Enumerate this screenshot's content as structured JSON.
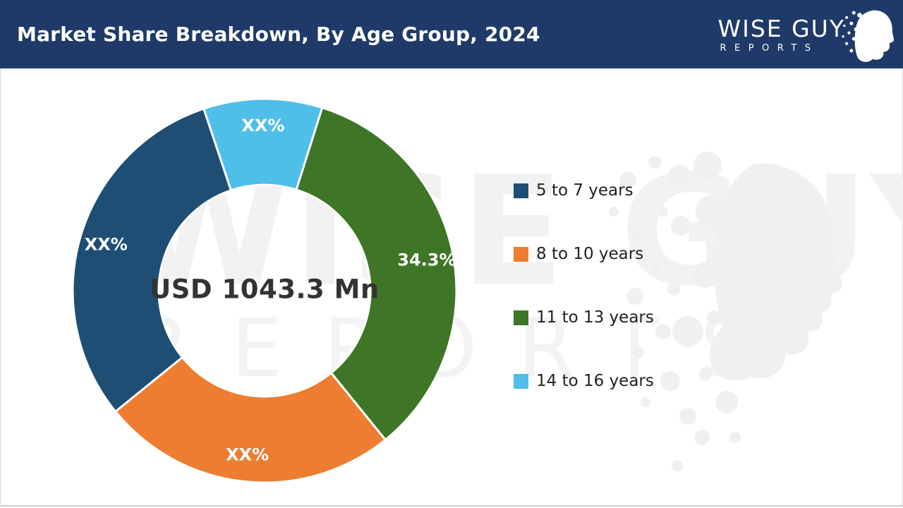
{
  "header": {
    "title": "Market Share Breakdown, By Age Group, 2024"
  },
  "logo": {
    "line1": "WISE GUY",
    "line2": "REPORTS"
  },
  "watermark": {
    "line1": "WISE GUY",
    "line2": "REPORTS"
  },
  "chart_data": {
    "type": "donut",
    "center_label": "USD 1043.3 Mn",
    "legend_position": "right",
    "start_angle": -18.5,
    "segments": [
      {
        "name": "14 to 16 years",
        "label": "XX%",
        "value": 10.0,
        "color": "#4FBEE8"
      },
      {
        "name": "11 to 13 years",
        "label": "34.3%",
        "value": 34.3,
        "color": "#3E7527"
      },
      {
        "name": "8 to 10 years",
        "label": "XX%",
        "value": 25.0,
        "color": "#ED7D31"
      },
      {
        "name": "5 to 7 years",
        "label": "XX%",
        "value": 30.7,
        "color": "#1F4E74"
      }
    ],
    "legend": [
      {
        "label": "5 to 7 years",
        "color": "#1F4E74"
      },
      {
        "label": "8 to 10 years",
        "color": "#ED7D31"
      },
      {
        "label": "11 to 13 years",
        "color": "#3E7527"
      },
      {
        "label": "14 to 16 years",
        "color": "#4FBEE8"
      }
    ]
  },
  "colors": {
    "header_bg": "#1F3A68",
    "title_text": "#FFFFFF",
    "center_text": "#333333",
    "slice_label_text": "#FFFFFF",
    "legend_text": "#222222",
    "watermark": "#F2F2F2",
    "border": "#D9D9D9"
  }
}
